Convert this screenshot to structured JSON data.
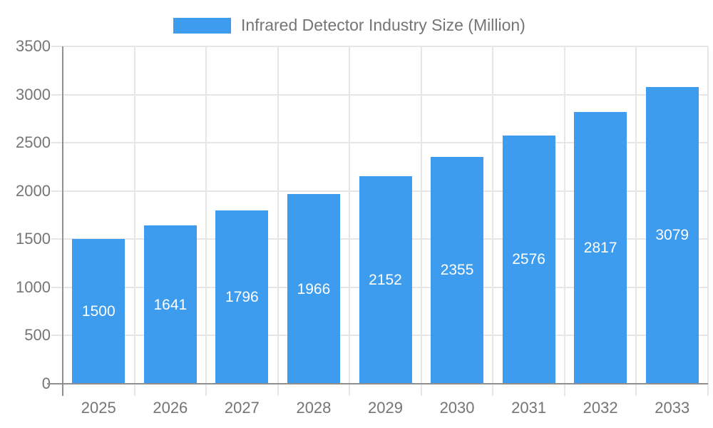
{
  "chart_data": {
    "type": "bar",
    "title": "Infrared Detector Industry Size (Million)",
    "categories": [
      "2025",
      "2026",
      "2027",
      "2028",
      "2029",
      "2030",
      "2031",
      "2032",
      "2033"
    ],
    "values": [
      1500,
      1641,
      1796,
      1966,
      2152,
      2355,
      2576,
      2817,
      3079
    ],
    "xlabel": "",
    "ylabel": "",
    "ylim": [
      0,
      3500
    ],
    "yticks": [
      0,
      500,
      1000,
      1500,
      2000,
      2500,
      3000,
      3500
    ],
    "grid": true,
    "legend_position": "top-center",
    "bar_color": "#3D9CEE",
    "value_label_color": "#FFFFFF"
  },
  "legend": {
    "label": "Infrared Detector Industry Size (Million)"
  },
  "colors": {
    "background": "#FFFFFF",
    "axis_text": "#757575",
    "axis_line": "#8F8F8F",
    "gridline": "#E6E6E6",
    "bar": "#3D9CEE",
    "bar_value_text": "#FFFFFF",
    "legend_text": "#757575"
  }
}
